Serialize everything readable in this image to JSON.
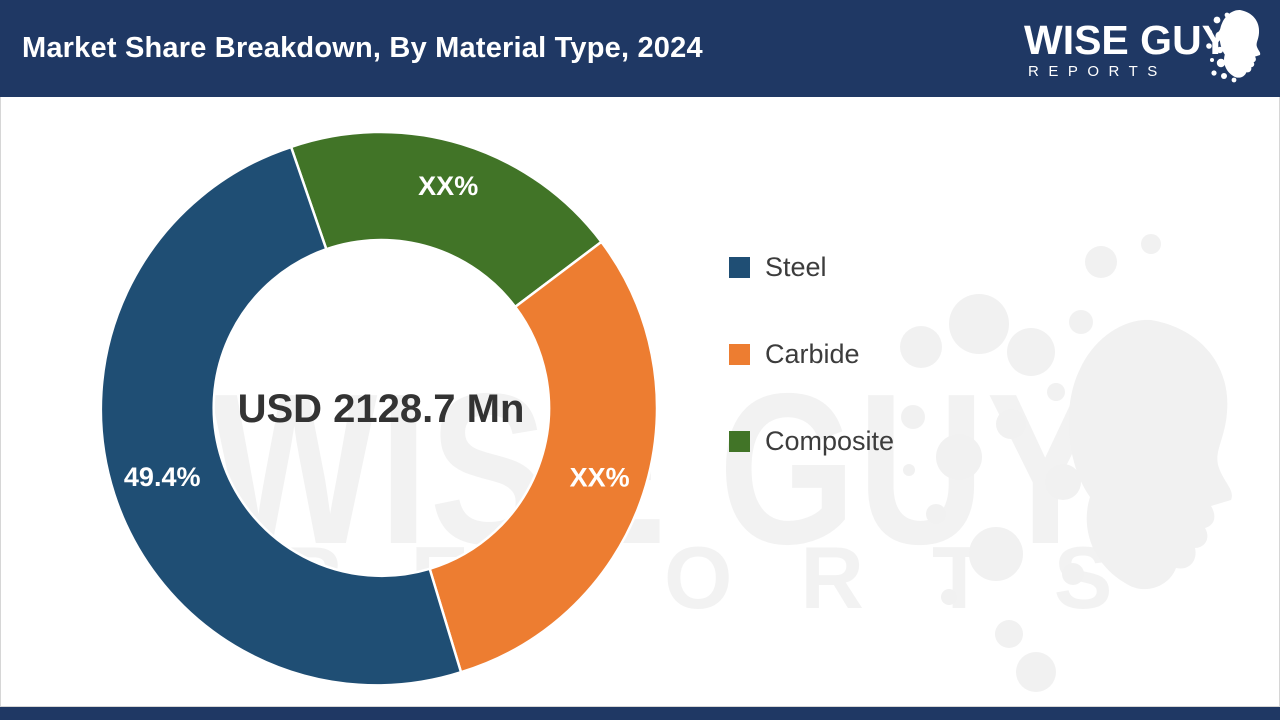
{
  "header": {
    "title": "Market Share Breakdown, By Material Type, 2024",
    "logo": {
      "line1": "WISE GUY",
      "line2": "R E P O R T S"
    }
  },
  "colors": {
    "header_bg": "#1f3864",
    "footer_bg": "#1f3864",
    "steel": "#1f4e74",
    "carbide": "#ed7d31",
    "composite": "#417427",
    "slice_label_text": "#ffffff",
    "center_text": "#333333",
    "legend_text": "#3c3c3c"
  },
  "chart_data": {
    "type": "pie",
    "subtype": "donut",
    "title": "Market Share Breakdown, By Material Type, 2024",
    "center_label": "USD 2128.7 Mn",
    "start_angle_deg": -19,
    "legend_position": "right",
    "series": [
      {
        "name": "Composite",
        "value": 20.0,
        "display_label": "XX%",
        "color": "#417427"
      },
      {
        "name": "Carbide",
        "value": 30.6,
        "display_label": "XX%",
        "color": "#ed7d31"
      },
      {
        "name": "Steel",
        "value": 49.4,
        "display_label": "49.4%",
        "color": "#1f4e74"
      }
    ],
    "legend": [
      {
        "label": "Steel",
        "color": "#1f4e74"
      },
      {
        "label": "Carbide",
        "color": "#ed7d31"
      },
      {
        "label": "Composite",
        "color": "#417427"
      }
    ]
  },
  "watermark": {
    "line1": "WISE GUY",
    "line2": "REPORTS"
  }
}
